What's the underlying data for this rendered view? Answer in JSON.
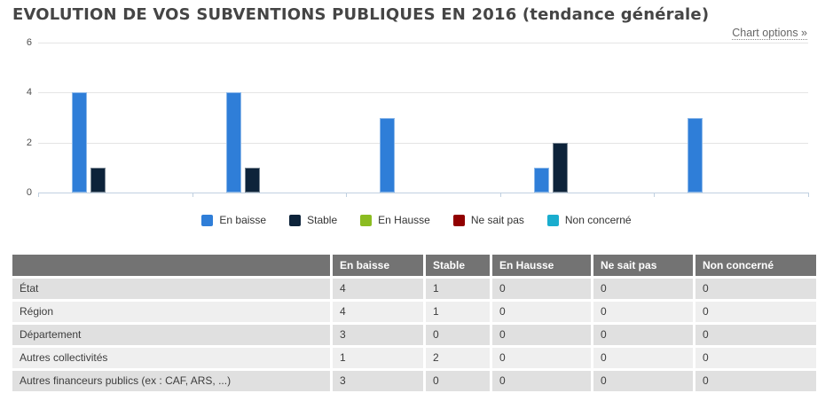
{
  "page": {
    "title": "EVOLUTION DE VOS SUBVENTIONS PUBLIQUES EN 2016 (tendance générale)",
    "chart_options_label": "Chart options »"
  },
  "colors": {
    "series": [
      "#2f7ed8",
      "#0d233a",
      "#8bbc21",
      "#910000",
      "#1aadce"
    ],
    "axis_line": "#c0d0e0",
    "grid_line": "#e4e4e4",
    "table_header_bg": "#737373",
    "table_row_odd_bg": "#e0e0e0",
    "table_row_even_bg": "#efefef"
  },
  "chart_data": {
    "type": "bar",
    "title": "EVOLUTION DE VOS SUBVENTIONS PUBLIQUES EN 2016 (tendance générale)",
    "categories": [
      "État",
      "Région",
      "Département",
      "Autres collectivités",
      "Autres financeurs publics (ex : CAF, ARS, ...)"
    ],
    "series": [
      {
        "name": "En baisse",
        "color": "#2f7ed8",
        "values": [
          4,
          4,
          3,
          1,
          3
        ]
      },
      {
        "name": "Stable",
        "color": "#0d233a",
        "values": [
          1,
          1,
          0,
          2,
          0
        ]
      },
      {
        "name": "En Hausse",
        "color": "#8bbc21",
        "values": [
          0,
          0,
          0,
          0,
          0
        ]
      },
      {
        "name": "Ne sait pas",
        "color": "#910000",
        "values": [
          0,
          0,
          0,
          0,
          0
        ]
      },
      {
        "name": "Non concerné",
        "color": "#1aadce",
        "values": [
          0,
          0,
          0,
          0,
          0
        ]
      }
    ],
    "xlabel": "",
    "ylabel": "",
    "ylim": [
      0,
      6
    ],
    "yticks": [
      0,
      2,
      4,
      6
    ],
    "grid": true,
    "legend_position": "bottom",
    "x_axis_category_labels_visible": false
  },
  "table": {
    "header": [
      "",
      "En baisse",
      "Stable",
      "En Hausse",
      "Ne sait pas",
      "Non concerné"
    ],
    "rows": [
      {
        "label": "État",
        "values": [
          "4",
          "1",
          "0",
          "0",
          "0"
        ]
      },
      {
        "label": "Région",
        "values": [
          "4",
          "1",
          "0",
          "0",
          "0"
        ]
      },
      {
        "label": "Département",
        "values": [
          "3",
          "0",
          "0",
          "0",
          "0"
        ]
      },
      {
        "label": "Autres collectivités",
        "values": [
          "1",
          "2",
          "0",
          "0",
          "0"
        ]
      },
      {
        "label": "Autres financeurs publics (ex : CAF, ARS, ...)",
        "values": [
          "3",
          "0",
          "0",
          "0",
          "0"
        ]
      }
    ]
  }
}
